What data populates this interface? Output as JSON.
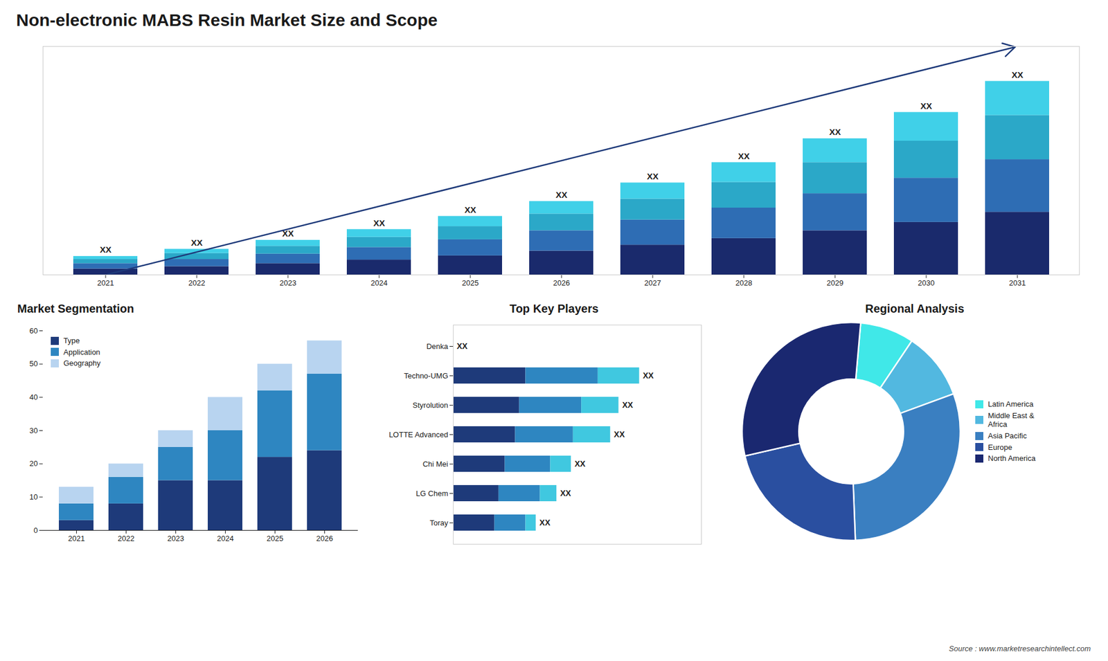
{
  "title": "Non-electronic MABS Resin Market Size and Scope",
  "caption": "Source : www.marketresearchintellect.com",
  "chart_data": [
    {
      "type": "bar",
      "stacked": true,
      "categories": [
        "2021",
        "2022",
        "2023",
        "2024",
        "2025",
        "2026",
        "2027",
        "2028",
        "2029",
        "2030",
        "2031"
      ],
      "series": [
        {
          "color": "#1a2a6c",
          "values": [
            1.0,
            1.4,
            1.9,
            2.5,
            3.2,
            4.0,
            5.0,
            6.1,
            7.4,
            8.8,
            10.5
          ]
        },
        {
          "color": "#2e6db4",
          "values": [
            0.9,
            1.2,
            1.6,
            2.1,
            2.7,
            3.4,
            4.2,
            5.1,
            6.2,
            7.4,
            8.8
          ]
        },
        {
          "color": "#2ba8c8",
          "values": [
            0.7,
            1.0,
            1.3,
            1.7,
            2.2,
            2.8,
            3.5,
            4.3,
            5.2,
            6.2,
            7.4
          ]
        },
        {
          "color": "#40d0e8",
          "values": [
            0.5,
            0.7,
            1.0,
            1.3,
            1.7,
            2.1,
            2.7,
            3.3,
            4.0,
            4.8,
            5.7
          ]
        }
      ],
      "ylim": [
        0,
        38.232
      ],
      "tick_labels": "x",
      "annotations": [
        "XX",
        "XX",
        "XX",
        "XX",
        "XX",
        "XX",
        "XX",
        "XX",
        "XX",
        "XX",
        "XX"
      ]
    },
    {
      "type": "bar",
      "stacked": true,
      "title": "Market Segmentation",
      "categories": [
        "2021",
        "2022",
        "2023",
        "2024",
        "2025",
        "2026"
      ],
      "series": [
        {
          "name": "Type",
          "color": "#1e3a7a",
          "values": [
            3,
            8,
            15,
            15,
            22,
            24
          ]
        },
        {
          "name": "Application",
          "color": "#2e86c1",
          "values": [
            5,
            8,
            10,
            15,
            20,
            23
          ]
        },
        {
          "name": "Geography",
          "color": "#b8d4f0",
          "values": [
            5,
            4,
            5,
            10,
            8,
            10
          ]
        }
      ],
      "ylim": [
        0,
        60
      ],
      "yticks": [
        0,
        10,
        20,
        30,
        40,
        50,
        60
      ],
      "legend": "upper left"
    },
    {
      "type": "bar",
      "stacked": true,
      "orientation": "horizontal",
      "title": "Top Key Players",
      "categories": [
        "Denka",
        "Techno-UMG",
        "Styrolution",
        "LOTTE Advanced",
        "Chi Mei",
        "LG Chem",
        "Toray"
      ],
      "series": [
        {
          "color": "#1e3a7a",
          "values": [
            0,
            3.5,
            3.2,
            3.0,
            2.5,
            2.2,
            2.0
          ]
        },
        {
          "color": "#2e86c1",
          "values": [
            0,
            3.5,
            3.0,
            2.8,
            2.2,
            2.0,
            1.5
          ]
        },
        {
          "color": "#40c8e0",
          "values": [
            0,
            2.0,
            1.8,
            1.8,
            1.0,
            0.8,
            0.5
          ]
        }
      ],
      "xlim": [
        0,
        12
      ],
      "tick_labels": "y",
      "annotations": [
        "XX",
        "XX",
        "XX",
        "XX",
        "XX",
        "XX",
        "XX"
      ]
    },
    {
      "type": "pie",
      "title": "Regional Analysis",
      "categories": [
        "Latin America",
        "Middle East &\nAfrica",
        "Asia Pacific",
        "Europe",
        "North America"
      ],
      "values": [
        8,
        10,
        30,
        22,
        30
      ],
      "colors": [
        "#40e8e8",
        "#52b8e0",
        "#3a7fc1",
        "#2a4fa0",
        "#1a2870"
      ],
      "legend": "right"
    }
  ]
}
